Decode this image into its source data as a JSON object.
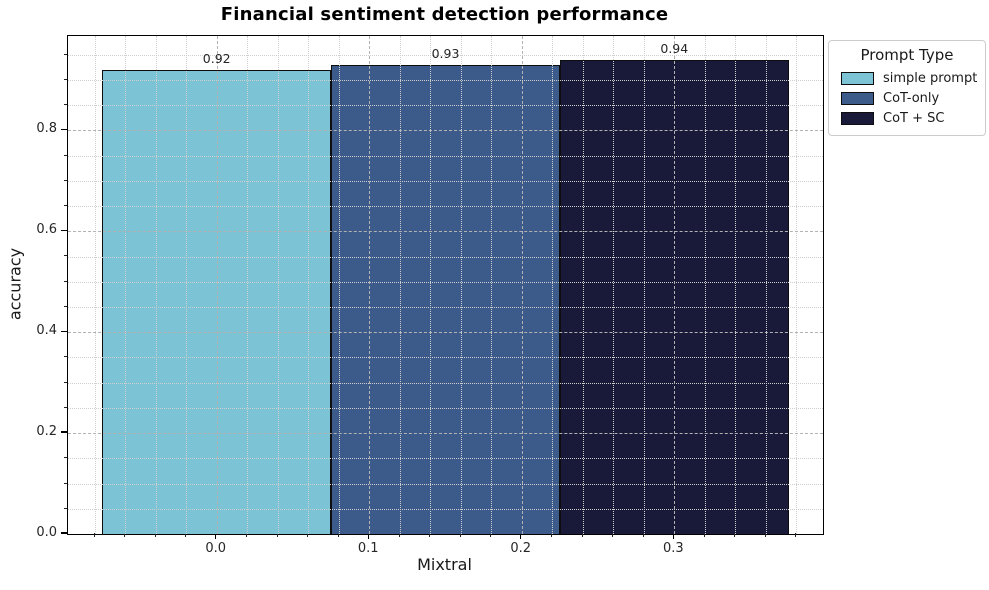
{
  "chart_data": {
    "type": "bar",
    "title": "Financial sentiment detection performance",
    "xlabel": "Mixtral",
    "ylabel": "accuracy",
    "xlim": [
      -0.0975,
      0.3975
    ],
    "ylim": [
      0,
      0.987
    ],
    "x_tick_values": [
      0.0,
      0.1,
      0.2,
      0.3
    ],
    "x_tick_labels": [
      "0.0",
      "0.1",
      "0.2",
      "0.3"
    ],
    "y_tick_values": [
      0.0,
      0.2,
      0.4,
      0.6,
      0.8
    ],
    "y_tick_labels": [
      "0.0",
      "0.2",
      "0.4",
      "0.6",
      "0.8"
    ],
    "x_minor_step": 0.02,
    "y_minor_step": 0.05,
    "grid": true,
    "grid_above_bars": true,
    "bar_width": 0.15,
    "legend": {
      "title": "Prompt Type",
      "position": "upper-right-outside"
    },
    "series": [
      {
        "name": "simple prompt",
        "center": 0.0,
        "value": 0.92,
        "label": "0.92",
        "color": "#7dc3d6"
      },
      {
        "name": "CoT-only",
        "center": 0.15,
        "value": 0.93,
        "label": "0.93",
        "color": "#3c5a8a"
      },
      {
        "name": "CoT + SC",
        "center": 0.3,
        "value": 0.94,
        "label": "0.94",
        "color": "#191a3a"
      }
    ]
  }
}
